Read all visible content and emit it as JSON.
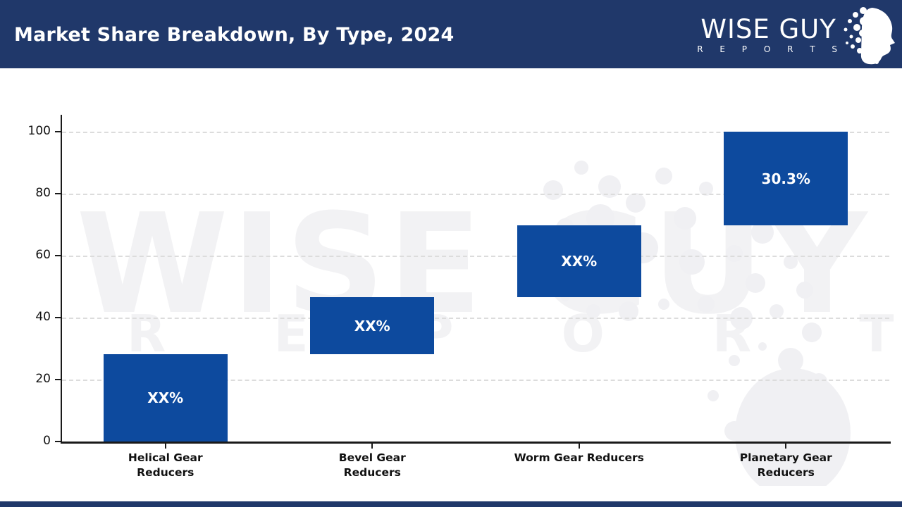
{
  "header": {
    "title": "Market Share Breakdown, By Type, 2024",
    "logo": {
      "line1": "WISE GUY",
      "line2": "R E P O R T S"
    }
  },
  "watermark": {
    "line1": "WISE GUY",
    "line2": "R E P O R T S"
  },
  "colors": {
    "header_bg": "#20386a",
    "footer_bg": "#20386a",
    "bar_fill": "#0d4a9e",
    "bar_label": "#ffffff",
    "gridline": "#dcdcdc",
    "axis": "#1a1a1a",
    "watermark": "#f2f2f4"
  },
  "chart_data": {
    "type": "bar",
    "subtype": "waterfall",
    "title": "Market Share Breakdown, By Type, 2024",
    "xlabel": "",
    "ylabel": "",
    "ylim": [
      0,
      100
    ],
    "yticks": [
      0,
      20,
      40,
      60,
      80,
      100
    ],
    "grid": "horizontal dashed",
    "legend": "none",
    "categories": [
      "Helical Gear Reducers",
      "Bevel Gear Reducers",
      "Worm Gear Reducers",
      "Planetary Gear Reducers"
    ],
    "category_label_lines": [
      [
        "Helical Gear",
        "Reducers"
      ],
      [
        "Bevel Gear",
        "Reducers"
      ],
      [
        "Worm Gear Reducers"
      ],
      [
        "Planetary Gear",
        "Reducers"
      ]
    ],
    "segments": [
      {
        "category": "Helical Gear Reducers",
        "start": 0,
        "end": 28.2,
        "value_label": "XX%"
      },
      {
        "category": "Bevel Gear Reducers",
        "start": 28.2,
        "end": 46.5,
        "value_label": "XX%"
      },
      {
        "category": "Worm Gear Reducers",
        "start": 46.5,
        "end": 69.7,
        "value_label": "XX%"
      },
      {
        "category": "Planetary Gear Reducers",
        "start": 69.7,
        "end": 100,
        "value_label": "30.3%"
      }
    ]
  }
}
